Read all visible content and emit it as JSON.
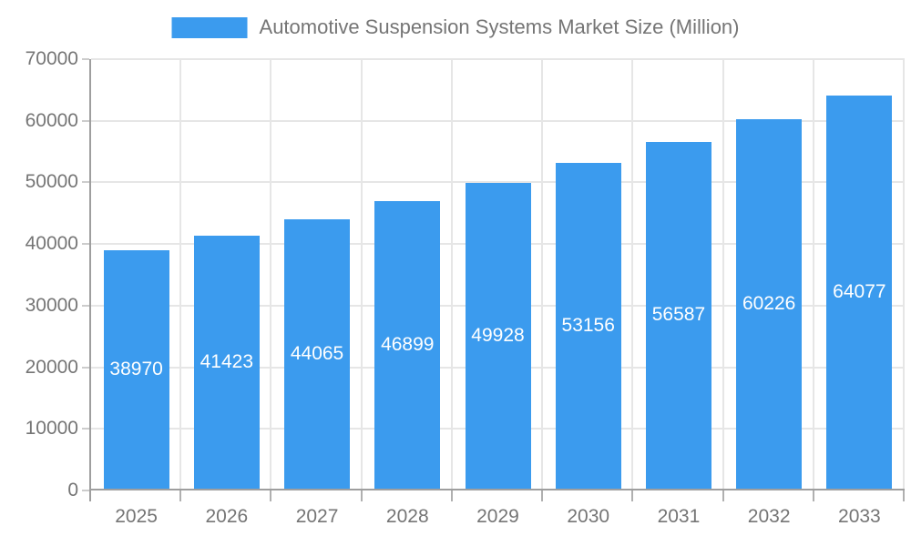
{
  "chart_data": {
    "type": "bar",
    "title": "Automotive Suspension Systems Market Size (Million)",
    "categories": [
      "2025",
      "2026",
      "2027",
      "2028",
      "2029",
      "2030",
      "2031",
      "2032",
      "2033"
    ],
    "series": [
      {
        "name": "Automotive Suspension Systems Market Size (Million)",
        "values": [
          38970,
          41423,
          44065,
          46899,
          49928,
          53156,
          56587,
          60226,
          64077
        ]
      }
    ],
    "value_labels_shown": true,
    "xlabel": "",
    "ylabel": "",
    "ylim": [
      0,
      70000
    ],
    "yticks": [
      0,
      10000,
      20000,
      30000,
      40000,
      50000,
      60000,
      70000
    ],
    "grid": "horizontal gridlines plus vertical category-boundary gridlines",
    "legend_position": "top-center",
    "colors": {
      "bar": "#3B9BEE",
      "bar_label": "#ffffff",
      "axis_text": "#757575",
      "axis_line": "#9e9e9e",
      "gridline": "#e6e6e6"
    }
  }
}
